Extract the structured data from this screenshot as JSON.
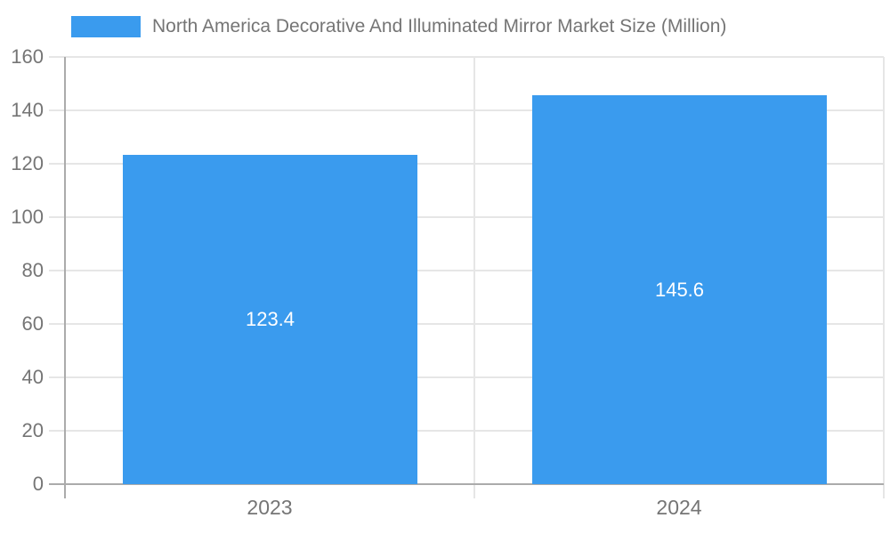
{
  "chart_data": {
    "type": "bar",
    "title": "North America Decorative And Illuminated Mirror Market Size (Million)",
    "categories": [
      "2023",
      "2024"
    ],
    "values": [
      123.4,
      145.6
    ],
    "value_labels": [
      "123.4",
      "145.6"
    ],
    "series": [
      {
        "name": "North America Decorative And Illuminated Mirror Market Size (Million)",
        "values": [
          123.4,
          145.6
        ]
      }
    ],
    "xlabel": "",
    "ylabel": "",
    "ylim": [
      0,
      160
    ],
    "yticks": [
      0,
      20,
      40,
      60,
      80,
      100,
      120,
      140,
      160
    ],
    "grid": true,
    "legend_position": "top-left",
    "colors": {
      "bar": "#3A9BEE",
      "grid": "#e6e6e6",
      "axis": "#ababab",
      "text": "#757575",
      "bar_label": "#ffffff",
      "background": "#ffffff"
    }
  }
}
